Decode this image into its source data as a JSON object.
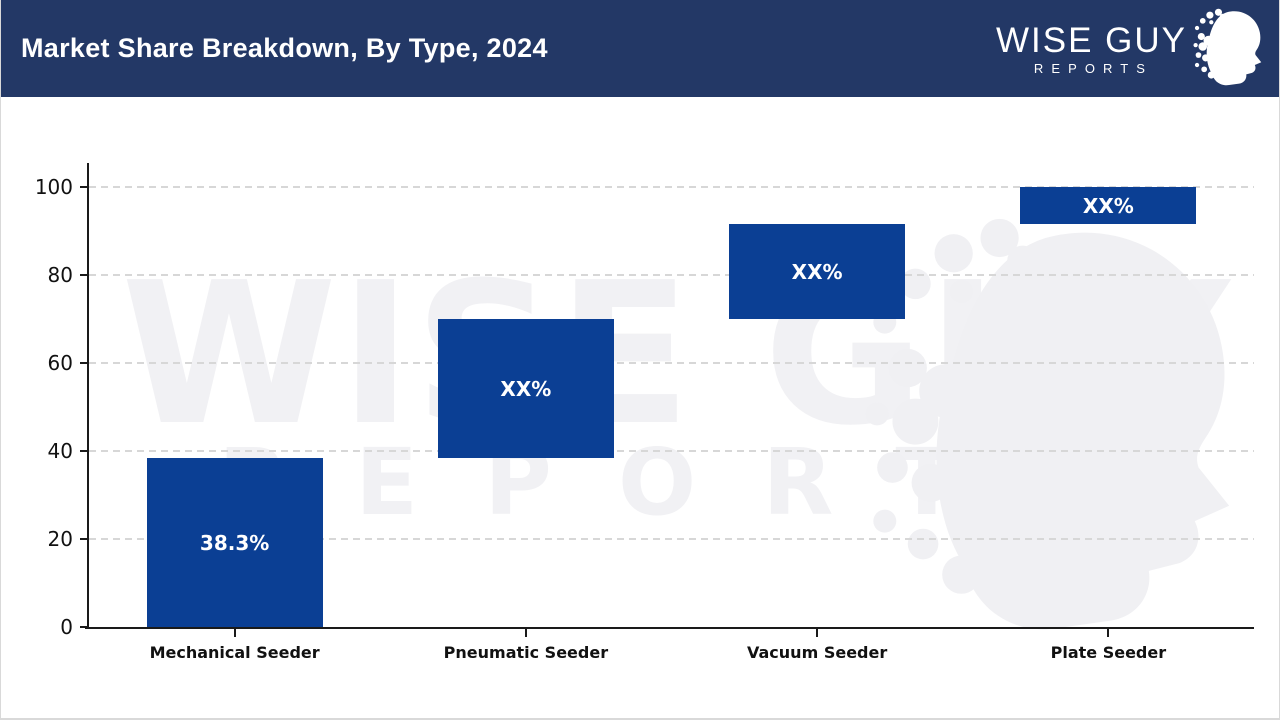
{
  "header": {
    "title": "Market Share Breakdown, By Type, 2024",
    "logo": {
      "wordmark": "WISE GUY",
      "subtitle": "REPORTS"
    }
  },
  "watermark": {
    "line1": "WISE GUY",
    "line2": "REPORTS"
  },
  "chart_data": {
    "type": "bar",
    "subtype": "waterfall",
    "title": "Market Share Breakdown, By Type, 2024",
    "categories": [
      "Mechanical Seeder",
      "Pneumatic Seeder",
      "Vacuum Seeder",
      "Plate Seeder"
    ],
    "bars": [
      {
        "category": "Mechanical Seeder",
        "start": 0,
        "end": 38.3,
        "label": "38.3%"
      },
      {
        "category": "Pneumatic Seeder",
        "start": 38.3,
        "end": 70,
        "label": "XX%"
      },
      {
        "category": "Vacuum Seeder",
        "start": 70,
        "end": 91.5,
        "label": "XX%"
      },
      {
        "category": "Plate Seeder",
        "start": 91.5,
        "end": 100,
        "label": "XX%"
      }
    ],
    "yticks": [
      0,
      20,
      40,
      60,
      80,
      100
    ],
    "ylim": [
      0,
      105
    ],
    "xlabel": "",
    "ylabel": "",
    "legend": null,
    "grid": "horizontal-dashed",
    "bar_color": "#0b3f94",
    "bar_label_color": "#ffffff",
    "axis_color": "#1a1a1a",
    "grid_color": "#d7d7d7"
  },
  "colors": {
    "header_bg": "#233866",
    "header_text": "#ffffff",
    "watermark": "#f1f1f4",
    "page_bg": "#ffffff"
  }
}
